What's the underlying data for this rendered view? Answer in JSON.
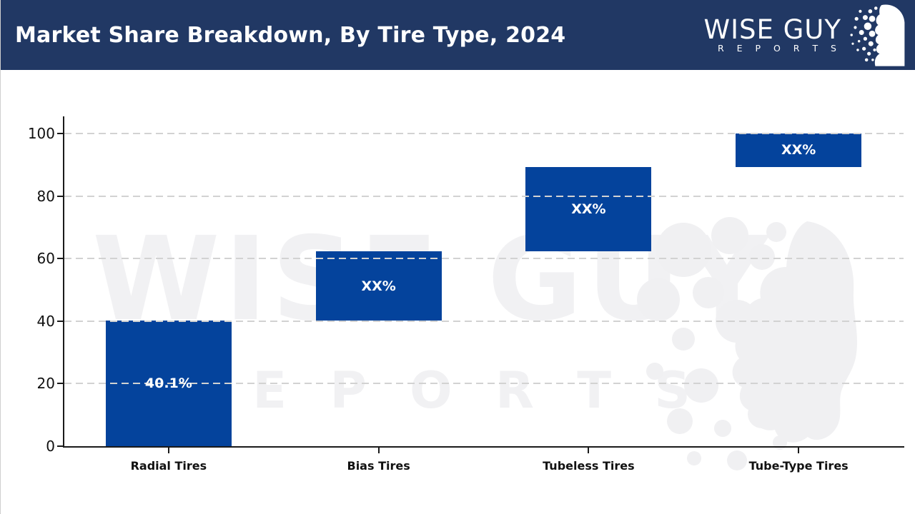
{
  "header": {
    "title": "Market Share Breakdown, By Tire Type, 2024",
    "logo": {
      "line1": "WISE GUY",
      "line2": "R E P O R T S"
    }
  },
  "watermark": {
    "line1": "WISE GUY",
    "line2": "R E P O R T S"
  },
  "colors": {
    "header_bg": "#213864",
    "bar": "#04439C",
    "bar_label": "#ffffff",
    "grid": "#d2d2d2",
    "axis": "#1a1a1a",
    "watermark": "#f1f1f3"
  },
  "chart_data": {
    "type": "bar",
    "subtype": "waterfall",
    "title": "Market Share Breakdown, By Tire Type, 2024",
    "xlabel": "",
    "ylabel": "",
    "ylim": [
      0,
      100
    ],
    "yticks": [
      0,
      20,
      40,
      60,
      80,
      100
    ],
    "grid": "horizontal-dashed",
    "legend": "none",
    "categories": [
      "Radial Tires",
      "Bias Tires",
      "Tubeless Tires",
      "Tube-Type Tires"
    ],
    "segments": [
      {
        "category": "Radial Tires",
        "start": 0,
        "end": 40.1,
        "label": "40.1%"
      },
      {
        "category": "Bias Tires",
        "start": 40.1,
        "end": 62.4,
        "label": "XX%"
      },
      {
        "category": "Tubeless Tires",
        "start": 62.4,
        "end": 89.3,
        "label": "XX%"
      },
      {
        "category": "Tube-Type Tires",
        "start": 89.3,
        "end": 100,
        "label": "XX%"
      }
    ]
  }
}
